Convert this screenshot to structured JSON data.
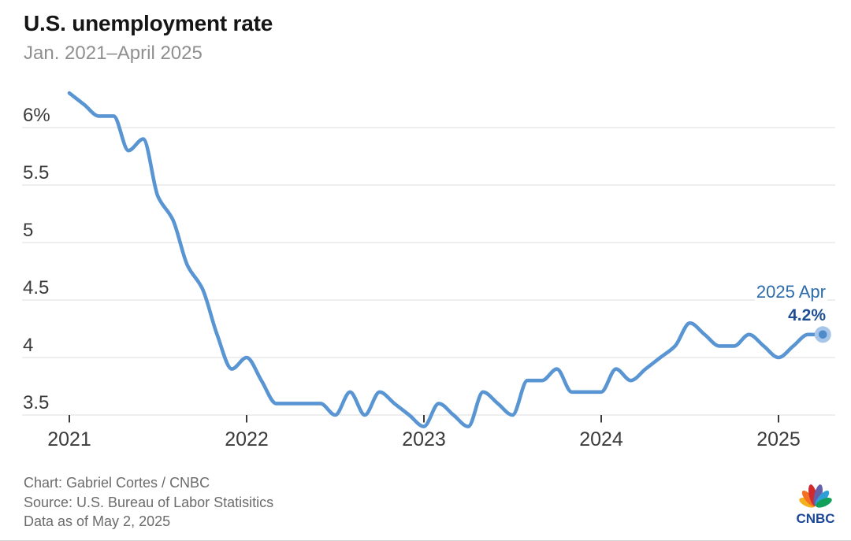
{
  "header": {
    "title": "U.S. unemployment rate",
    "subtitle": "Jan. 2021–April 2025"
  },
  "chart_data": {
    "type": "line",
    "title": "U.S. unemployment rate",
    "subtitle": "Jan. 2021–April 2025",
    "unit": "percent",
    "grid": true,
    "x": [
      "2021-01",
      "2021-02",
      "2021-03",
      "2021-04",
      "2021-05",
      "2021-06",
      "2021-07",
      "2021-08",
      "2021-09",
      "2021-10",
      "2021-11",
      "2021-12",
      "2022-01",
      "2022-02",
      "2022-03",
      "2022-04",
      "2022-05",
      "2022-06",
      "2022-07",
      "2022-08",
      "2022-09",
      "2022-10",
      "2022-11",
      "2022-12",
      "2023-01",
      "2023-02",
      "2023-03",
      "2023-04",
      "2023-05",
      "2023-06",
      "2023-07",
      "2023-08",
      "2023-09",
      "2023-10",
      "2023-11",
      "2023-12",
      "2024-01",
      "2024-02",
      "2024-03",
      "2024-04",
      "2024-05",
      "2024-06",
      "2024-07",
      "2024-08",
      "2024-09",
      "2024-10",
      "2024-11",
      "2024-12",
      "2025-01",
      "2025-02",
      "2025-03",
      "2025-04"
    ],
    "values": [
      6.3,
      6.2,
      6.1,
      6.1,
      5.8,
      5.9,
      5.4,
      5.2,
      4.8,
      4.6,
      4.2,
      3.9,
      4.0,
      3.8,
      3.6,
      3.6,
      3.6,
      3.6,
      3.5,
      3.7,
      3.5,
      3.7,
      3.6,
      3.5,
      3.4,
      3.6,
      3.5,
      3.4,
      3.7,
      3.6,
      3.5,
      3.8,
      3.8,
      3.9,
      3.7,
      3.7,
      3.7,
      3.9,
      3.8,
      3.9,
      4.0,
      4.1,
      4.3,
      4.2,
      4.1,
      4.1,
      4.2,
      4.1,
      4.0,
      4.1,
      4.2,
      4.2
    ],
    "y_ticks": [
      {
        "label": "6%",
        "value": 6
      },
      {
        "label": "5.5",
        "value": 5.5
      },
      {
        "label": "5",
        "value": 5
      },
      {
        "label": "4.5",
        "value": 4.5
      },
      {
        "label": "4",
        "value": 4
      },
      {
        "label": "3.5",
        "value": 3.5
      }
    ],
    "x_ticks": [
      {
        "label": "2021",
        "month_index": 0
      },
      {
        "label": "2022",
        "month_index": 12
      },
      {
        "label": "2023",
        "month_index": 24
      },
      {
        "label": "2024",
        "month_index": 36
      },
      {
        "label": "2025",
        "month_index": 48
      }
    ],
    "ylim_labeled": [
      3.5,
      6.0
    ],
    "last_point": {
      "label": "2025 Apr",
      "value": 4.2,
      "display": "4.2%"
    },
    "line_color": "#5a95d3",
    "dot_halo_color": "#a6c5e9",
    "dot_core_color": "#4f8bc9",
    "grid_color": "#dcdcdc",
    "axis_text_color": "#3b3b3b"
  },
  "annotation": {
    "label": "2025 Apr",
    "value": "4.2%"
  },
  "footer": {
    "lines": [
      "Chart: Gabriel Cortes / CNBC",
      "Source: U.S. Bureau of Labor Statisitics",
      "Data as of May 2, 2025"
    ]
  },
  "logo": {
    "wordmark": "CNBC",
    "feather_colors": [
      "#f2b01e",
      "#f36f21",
      "#d02a2f",
      "#6460aa",
      "#2e9fd8",
      "#11a05a"
    ],
    "wordmark_color": "#1b4796"
  },
  "colors": {
    "title": "#151515",
    "subtitle": "#8f8f8f",
    "annotation_label": "#2c6ba9",
    "annotation_value": "#1d4e91",
    "footer_text": "#6b6b6b",
    "background": "#ffffff"
  }
}
